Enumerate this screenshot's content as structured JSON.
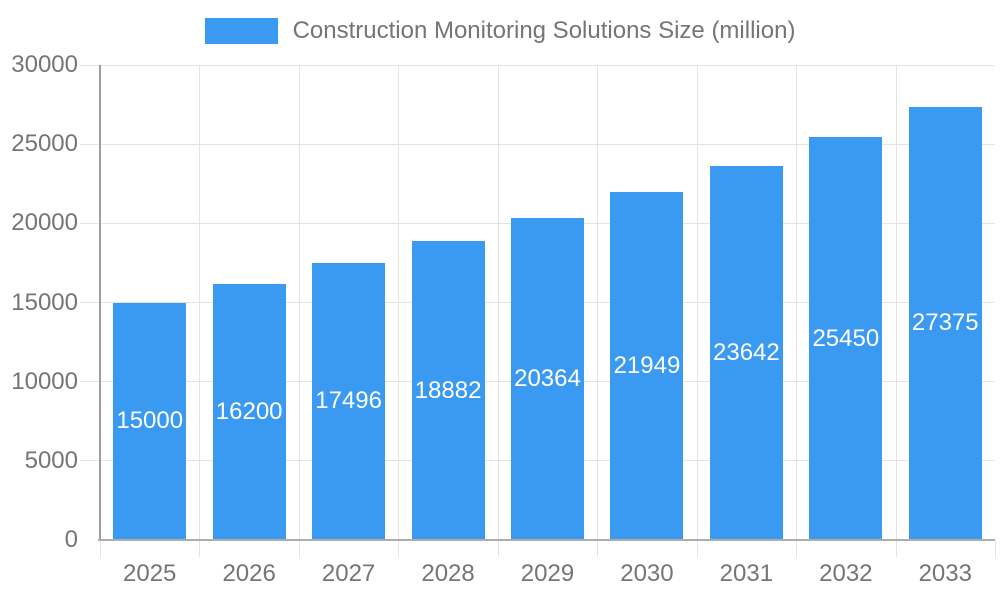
{
  "chart_data": {
    "type": "bar",
    "title": "Construction Monitoring Solutions Size (million)",
    "categories": [
      "2025",
      "2026",
      "2027",
      "2028",
      "2029",
      "2030",
      "2031",
      "2032",
      "2033"
    ],
    "values": [
      15000,
      16200,
      17496,
      18882,
      20364,
      21949,
      23642,
      25450,
      27375
    ],
    "value_labels": [
      "15000",
      "16200",
      "17496",
      "18882",
      "20364",
      "21949",
      "23642",
      "25450",
      "27375"
    ],
    "xlabel": "",
    "ylabel": "",
    "ylim": [
      0,
      30000
    ],
    "ytick_step": 5000,
    "ytick_labels": [
      "0",
      "5000",
      "10000",
      "15000",
      "20000",
      "25000",
      "30000"
    ],
    "legend_position": "top",
    "grid": "on",
    "colors": {
      "bar": "#3A99F0",
      "value_label": "#FFFFFF",
      "axis_label": "#757575",
      "legend_label": "#757575",
      "gridline": "#E4E4E4",
      "y_axis_line": "#9E9E9E",
      "x_axis_line": "#ADADAD",
      "background": "#FFFFFF"
    }
  }
}
